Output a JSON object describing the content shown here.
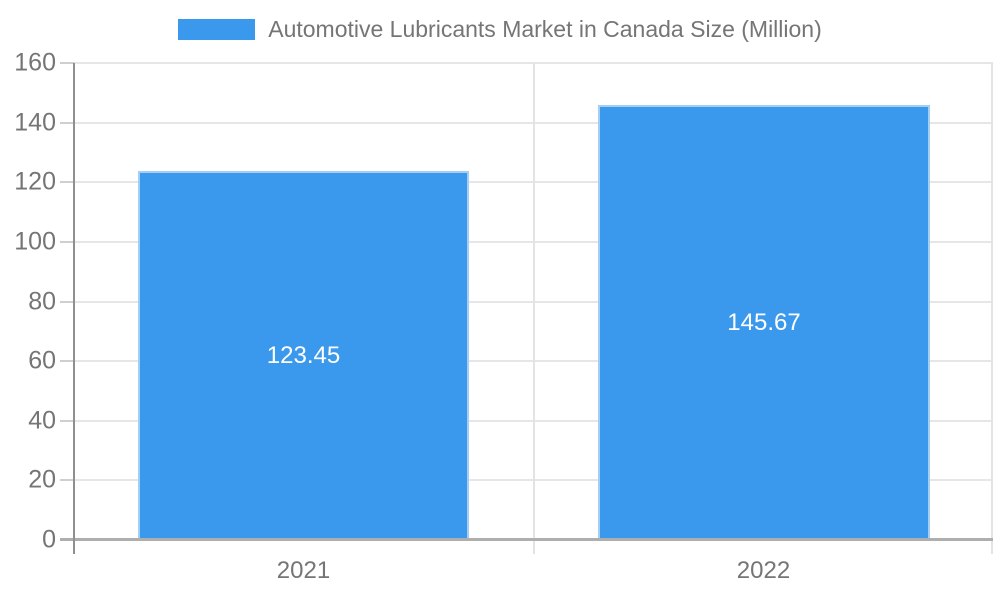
{
  "chart_data": {
    "type": "bar",
    "title": "Automotive Lubricants Market in Canada Size (Million)",
    "categories": [
      "2021",
      "2022"
    ],
    "values": [
      123.45,
      145.67
    ],
    "data_labels": [
      "123.45",
      "145.67"
    ],
    "series": [
      {
        "name": "Automotive Lubricants Market in Canada Size (Million)",
        "values": [
          123.45,
          145.67
        ]
      }
    ],
    "xlabel": "",
    "ylabel": "",
    "ylim": [
      0,
      160
    ],
    "ytick_step": 20,
    "yticks": [
      0,
      20,
      40,
      60,
      80,
      100,
      120,
      140,
      160
    ],
    "grid": true,
    "legend_position": "top",
    "colors": {
      "bar_fill": "#3B99ED",
      "bar_border": "#A4CFF4",
      "grid_line": "#E6E6E6",
      "y_axis_line": "#8F8F8F",
      "x_axis_line": "#AEAEAE",
      "tick_text": "#757575",
      "bar_label_text": "#FFFFFF"
    }
  },
  "legend": {
    "label": "Automotive Lubricants Market in Canada Size (Million)",
    "swatch_color": "#3B99ED"
  },
  "axes": {
    "y_tick_labels": [
      "160",
      "140",
      "120",
      "100",
      "80",
      "60",
      "40",
      "20",
      "0"
    ],
    "x_tick_labels": [
      "2021",
      "2022"
    ]
  }
}
